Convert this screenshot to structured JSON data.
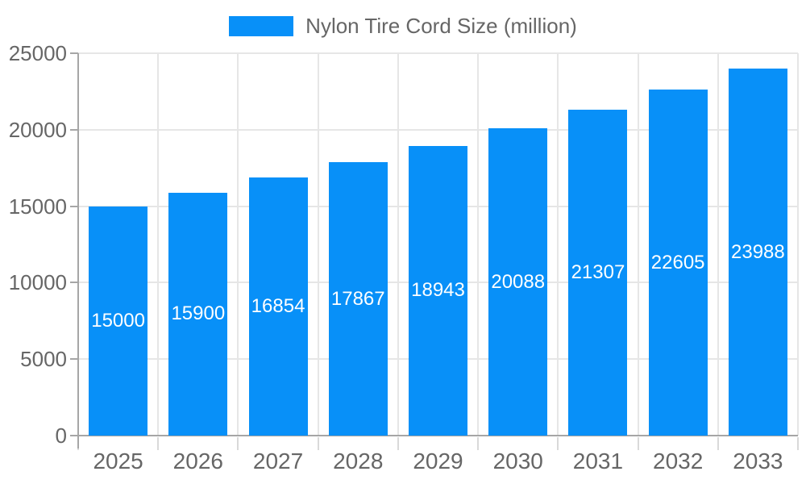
{
  "chart_data": {
    "type": "bar",
    "title": "Nylon Tire Cord Size (million)",
    "categories": [
      "2025",
      "2026",
      "2027",
      "2028",
      "2029",
      "2030",
      "2031",
      "2032",
      "2033"
    ],
    "values": [
      15000,
      15900,
      16854,
      17867,
      18943,
      20088,
      21307,
      22605,
      23988
    ],
    "value_labels": [
      "15000",
      "15900",
      "16854",
      "17867",
      "18943",
      "20088",
      "21307",
      "22605",
      "23988"
    ],
    "ylim": [
      0,
      25000
    ],
    "yticks": [
      0,
      5000,
      10000,
      15000,
      20000,
      25000
    ],
    "ytick_labels": [
      "0",
      "5000",
      "10000",
      "15000",
      "20000",
      "25000"
    ],
    "xlabel": "",
    "ylabel": "",
    "grid": true,
    "legend_position": "top-center",
    "colors": {
      "bar": "#0890f8",
      "grid": "#e6e6e6",
      "axis_line": "#a6a6a6",
      "x_tick": "#d9d9d9",
      "y_tick": "#a6a6a6",
      "axis_text": "#666666",
      "value_text": "#ffffff",
      "background": "#ffffff"
    }
  }
}
